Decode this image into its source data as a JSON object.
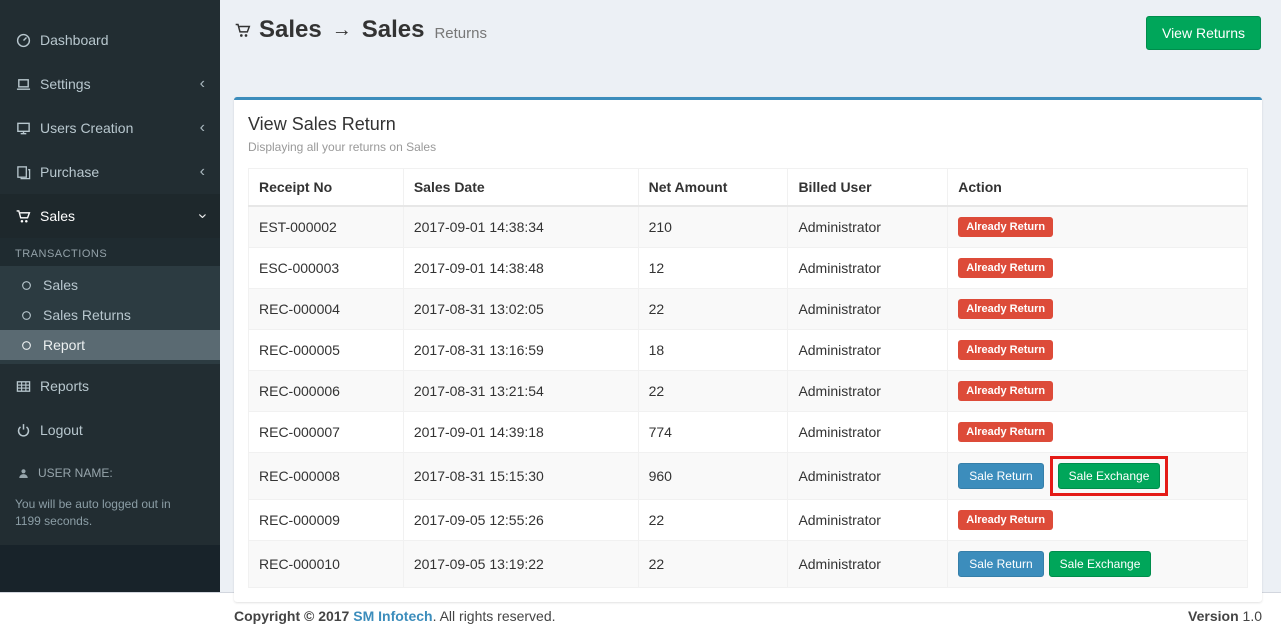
{
  "colors": {
    "sidebar_bg": "#222d32",
    "sidebar_active_bg": "#1e282c",
    "submenu_bg": "#2c3b41",
    "accent_blue": "#3c8dbc",
    "success_green": "#00a65a",
    "danger_red": "#dd4b39",
    "top_strip_teal": "#00838f",
    "annotation_red": "#e41b17",
    "content_bg": "#ecf0f5"
  },
  "sidebar": {
    "items": [
      {
        "label": "Dashboard",
        "icon": "dashboard-icon"
      },
      {
        "label": "Settings",
        "icon": "laptop-icon",
        "chevron": "left"
      },
      {
        "label": "Users Creation",
        "icon": "desktop-icon",
        "chevron": "left"
      },
      {
        "label": "Purchase",
        "icon": "files-icon",
        "chevron": "left"
      },
      {
        "label": "Sales",
        "icon": "cart-icon",
        "chevron": "down",
        "active": true
      }
    ],
    "section_header": "TRANSACTIONS",
    "sub_items": [
      {
        "label": "Sales",
        "icon": "circle-icon"
      },
      {
        "label": "Sales Returns",
        "icon": "circle-icon"
      },
      {
        "label": "Report",
        "icon": "circle-icon",
        "highlighted": true
      }
    ],
    "reports_label": "Reports",
    "logout_label": "Logout",
    "user_name_label": "USER NAME:",
    "auto_logout_text": "You will be auto logged out in 1199 seconds."
  },
  "header": {
    "breadcrumb_primary": "Sales",
    "breadcrumb_secondary": "Sales",
    "breadcrumb_sub": "Returns",
    "view_returns_button": "View Returns"
  },
  "panel": {
    "title": "View Sales Return",
    "subtitle": "Displaying all your returns on Sales",
    "table": {
      "columns": [
        "Receipt No",
        "Sales Date",
        "Net Amount",
        "Billed User",
        "Action"
      ],
      "rows": [
        {
          "receipt_no": "EST-000002",
          "sales_date": "2017-09-01 14:38:34",
          "net_amount": "210",
          "billed_user": "Administrator",
          "actions": [
            {
              "label": "Already Return",
              "kind": "badge",
              "style": "danger"
            }
          ]
        },
        {
          "receipt_no": "ESC-000003",
          "sales_date": "2017-09-01 14:38:48",
          "net_amount": "12",
          "billed_user": "Administrator",
          "actions": [
            {
              "label": "Already Return",
              "kind": "badge",
              "style": "danger"
            }
          ]
        },
        {
          "receipt_no": "REC-000004",
          "sales_date": "2017-08-31 13:02:05",
          "net_amount": "22",
          "billed_user": "Administrator",
          "actions": [
            {
              "label": "Already Return",
              "kind": "badge",
              "style": "danger"
            }
          ]
        },
        {
          "receipt_no": "REC-000005",
          "sales_date": "2017-08-31 13:16:59",
          "net_amount": "18",
          "billed_user": "Administrator",
          "actions": [
            {
              "label": "Already Return",
              "kind": "badge",
              "style": "danger"
            }
          ]
        },
        {
          "receipt_no": "REC-000006",
          "sales_date": "2017-08-31 13:21:54",
          "net_amount": "22",
          "billed_user": "Administrator",
          "actions": [
            {
              "label": "Already Return",
              "kind": "badge",
              "style": "danger"
            }
          ]
        },
        {
          "receipt_no": "REC-000007",
          "sales_date": "2017-09-01 14:39:18",
          "net_amount": "774",
          "billed_user": "Administrator",
          "actions": [
            {
              "label": "Already Return",
              "kind": "badge",
              "style": "danger"
            }
          ]
        },
        {
          "receipt_no": "REC-000008",
          "sales_date": "2017-08-31 15:15:30",
          "net_amount": "960",
          "billed_user": "Administrator",
          "actions": [
            {
              "label": "Sale Return",
              "kind": "button",
              "style": "primary"
            },
            {
              "label": "Sale Exchange",
              "kind": "button",
              "style": "success",
              "highlighted": true
            }
          ]
        },
        {
          "receipt_no": "REC-000009",
          "sales_date": "2017-09-05 12:55:26",
          "net_amount": "22",
          "billed_user": "Administrator",
          "actions": [
            {
              "label": "Already Return",
              "kind": "badge",
              "style": "danger"
            }
          ]
        },
        {
          "receipt_no": "REC-000010",
          "sales_date": "2017-09-05 13:19:22",
          "net_amount": "22",
          "billed_user": "Administrator",
          "actions": [
            {
              "label": "Sale Return",
              "kind": "button",
              "style": "primary"
            },
            {
              "label": "Sale Exchange",
              "kind": "button",
              "style": "success"
            }
          ]
        }
      ]
    }
  },
  "footer": {
    "copyright_prefix": "Copyright © 2017",
    "company": "SM Infotech",
    "suffix": ". All rights reserved.",
    "version_label": "Version",
    "version_value": "1.0"
  }
}
